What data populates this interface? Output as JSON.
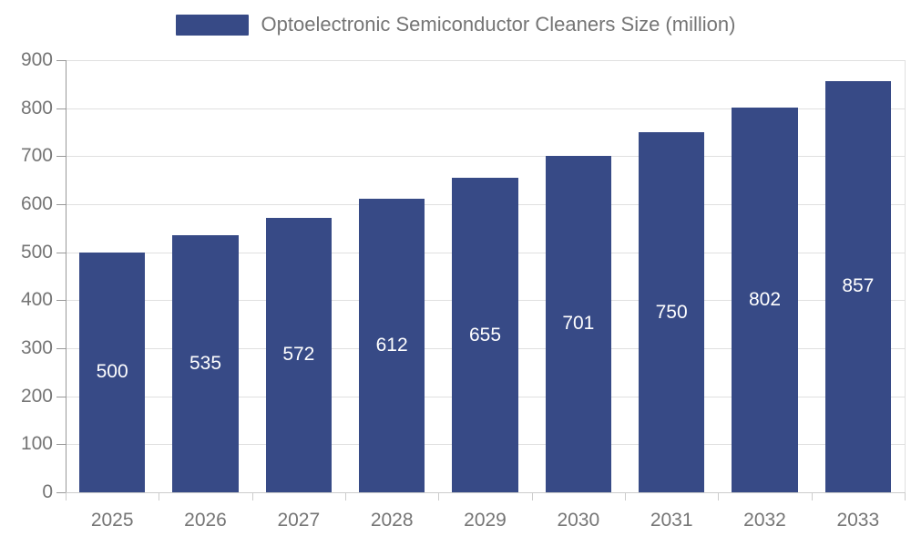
{
  "chart_data": {
    "type": "bar",
    "title": "Optoelectronic Semiconductor Cleaners Size (million)",
    "categories": [
      "2025",
      "2026",
      "2027",
      "2028",
      "2029",
      "2030",
      "2031",
      "2032",
      "2033"
    ],
    "values": [
      500,
      535,
      572,
      612,
      655,
      701,
      750,
      802,
      857
    ],
    "xlabel": "",
    "ylabel": "",
    "ylim": [
      0,
      900
    ],
    "ytick_interval": 100,
    "ytick_labels": [
      "0",
      "100",
      "200",
      "300",
      "400",
      "500",
      "600",
      "700",
      "800",
      "900"
    ],
    "grid": true,
    "legend_position": "top-center",
    "bar_color": "#374A86",
    "value_label_color": "#FFFFFF",
    "axis_label_color": "#757575",
    "gridline_color": "#E0E0E0",
    "y_axis_line_color": "#999999",
    "x_axis_line_color": "#CCCCCC"
  }
}
